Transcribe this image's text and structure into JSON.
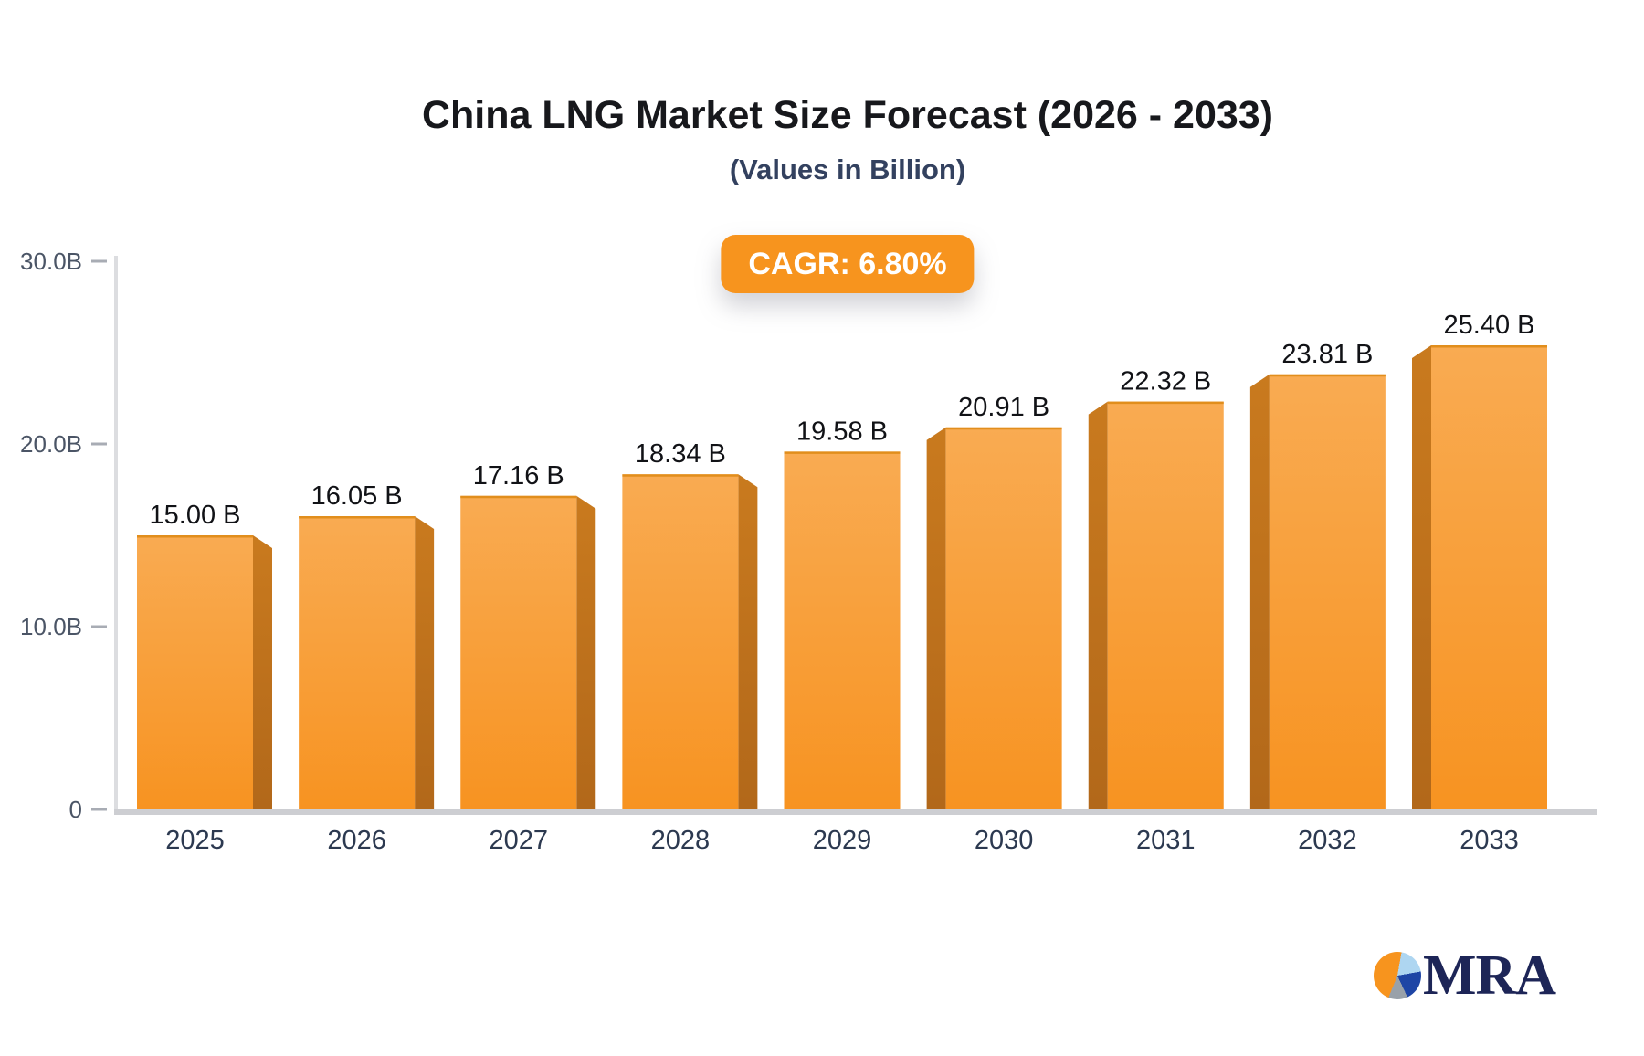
{
  "header": {
    "title": "China LNG Market Size Forecast (2026 - 2033)",
    "subtitle": "(Values in Billion)",
    "cagr_label": "CAGR: 6.80%"
  },
  "logo": {
    "text": "MRA"
  },
  "colors": {
    "bar_top": "#f9ab52",
    "bar_bottom": "#f79321",
    "bar_side_top": "#c97a1e",
    "bar_side_bottom": "#b2681a",
    "bar_top_edge": "#e18e1d",
    "badge_bg": "#f7941e",
    "badge_text": "#ffffff",
    "axis_line": "#dcdde0",
    "baseline": "#cdced2",
    "tick": "#a8acb4",
    "title_text": "#17181c",
    "subtitle_text": "#33415f",
    "value_label": "#111216",
    "category_label": "#2c3950",
    "ytick_label": "#4b5566",
    "logo_text": "#1d2557",
    "logo_pie": [
      "#f7941e",
      "#aed6f1",
      "#1e45a5",
      "#99a1a9"
    ]
  },
  "chart_data": {
    "type": "bar",
    "title": "China LNG Market Size Forecast (2026 - 2033)",
    "subtitle": "(Values in Billion)",
    "cagr_badge": "CAGR: 6.80%",
    "categories": [
      "2025",
      "2026",
      "2027",
      "2028",
      "2029",
      "2030",
      "2031",
      "2032",
      "2033"
    ],
    "values": [
      15.0,
      16.05,
      17.16,
      18.34,
      19.58,
      20.91,
      22.32,
      23.81,
      25.4
    ],
    "value_labels": [
      "15.00 B",
      "16.05 B",
      "17.16 B",
      "18.34 B",
      "19.58 B",
      "20.91 B",
      "22.32 B",
      "23.81 B",
      "25.40 B"
    ],
    "unit": "Billion",
    "xlabel": "",
    "ylabel": "",
    "ylim": [
      0,
      30
    ],
    "yticks": [
      {
        "value": 0,
        "label": "0"
      },
      {
        "value": 10,
        "label": "10.0B"
      },
      {
        "value": 20,
        "label": "20.0B"
      },
      {
        "value": 30,
        "label": "30.0B"
      }
    ],
    "grid": false,
    "legend": "none",
    "bar_style": "3d-extruded, side faces mirror around center bar"
  }
}
